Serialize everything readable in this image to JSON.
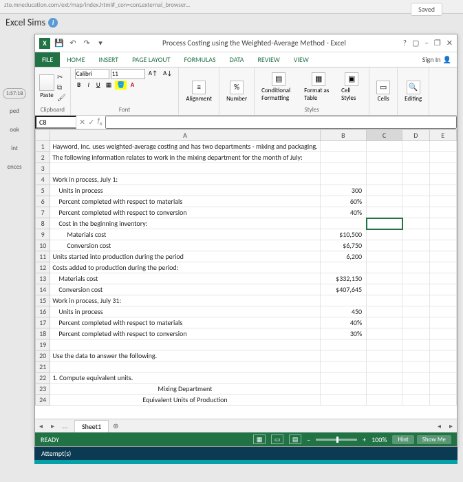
{
  "url_fragment": "zto.mneducation.com/ext/map/index.html#_con=conLexternal_browser...",
  "saved_label": "Saved",
  "app_name": "Excel Sims",
  "sidebar": {
    "timer": "1:57:18",
    "items": [
      "ped",
      "ook",
      "int",
      "ences"
    ]
  },
  "window": {
    "title": "Process Costing using the Weighted-Average Method - Excel",
    "help_icon": "?",
    "ribbon_opts": "▢",
    "minimize": "–",
    "restore": "❐",
    "close": "✕"
  },
  "tabs": {
    "file": "FILE",
    "home": "HOME",
    "insert": "INSERT",
    "page_layout": "PAGE LAYOUT",
    "formulas": "FORMULAS",
    "data": "DATA",
    "review": "REVIEW",
    "view": "VIEW",
    "signin": "Sign In"
  },
  "ribbon": {
    "paste": "Paste",
    "clipboard": "Clipboard",
    "font_name": "Calibri",
    "font_size": "11",
    "font_label": "Font",
    "alignment": "Alignment",
    "number_pct": "%",
    "number": "Number",
    "cond_fmt": "Conditional Formatting",
    "fmt_table": "Format as Table",
    "cell_styles": "Cell Styles",
    "styles": "Styles",
    "cells": "Cells",
    "editing": "Editing"
  },
  "namebox": "C8",
  "columns": [
    "A",
    "B",
    "C",
    "D",
    "E"
  ],
  "rows": [
    {
      "n": 1,
      "a": "Hayword, Inc. uses weighted-average costing and has two departments - mixing and packaging."
    },
    {
      "n": 2,
      "a": "The following information relates to work in the mixing department for the month of July:"
    },
    {
      "n": 3,
      "a": ""
    },
    {
      "n": 4,
      "a": "Work in process, July 1:"
    },
    {
      "n": 5,
      "a": "Units in process",
      "b": "300",
      "ind": true
    },
    {
      "n": 6,
      "a": "Percent completed with respect to materials",
      "b": "60%",
      "ind": true
    },
    {
      "n": 7,
      "a": "Percent completed with respect to conversion",
      "b": "40%",
      "ind": true
    },
    {
      "n": 8,
      "a": "Cost in the beginning inventory:",
      "sel": true,
      "ind": true
    },
    {
      "n": 9,
      "a": "Materials cost",
      "b": "$10,500",
      "ind": true,
      "ind2": true
    },
    {
      "n": 10,
      "a": "Conversion cost",
      "b": "$6,750",
      "ind": true,
      "ind2": true
    },
    {
      "n": 11,
      "a": "Units started into production during the period",
      "b": "6,200"
    },
    {
      "n": 12,
      "a": "Costs added to production during the period:"
    },
    {
      "n": 13,
      "a": "Materials cost",
      "b": "$332,150",
      "ind": true
    },
    {
      "n": 14,
      "a": "Conversion cost",
      "b": "$407,645",
      "ind": true
    },
    {
      "n": 15,
      "a": "Work in process, July 31:"
    },
    {
      "n": 16,
      "a": "Units in process",
      "b": "450",
      "ind": true
    },
    {
      "n": 17,
      "a": "Percent completed with respect to materials",
      "b": "40%",
      "ind": true
    },
    {
      "n": 18,
      "a": "Percent completed with respect to conversion",
      "b": "30%",
      "ind": true
    },
    {
      "n": 19,
      "a": ""
    },
    {
      "n": 20,
      "a": "Use the data to answer the following."
    },
    {
      "n": 21,
      "a": ""
    },
    {
      "n": 22,
      "a": "1. Compute equivalent units."
    },
    {
      "n": 23,
      "a": "",
      "a2": "Mixing Department"
    },
    {
      "n": 24,
      "a": "",
      "a2": "Equivalent Units of Production"
    }
  ],
  "sheet_tab": "Sheet1",
  "status": {
    "ready": "READY",
    "zoom": "100%",
    "hint": "Hint",
    "showme": "Show Me"
  },
  "attempts": "Attempt(s)"
}
